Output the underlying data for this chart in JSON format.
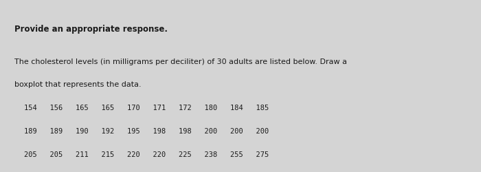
{
  "header": "Provide an appropriate response.",
  "body_line1": "The cholesterol levels (in milligrams per deciliter) of 30 adults are listed below. Draw a",
  "body_line2": "boxplot that represents the data.",
  "data_row1": "154   156   165   165   170   171   172   180   184   185",
  "data_row2": "189   189   190   192   195   198   198   200   200   200",
  "data_row3": "205   205   211   215   220   220   225   238   255   275",
  "background_color": "#d4d4d4",
  "text_color": "#1a1a1a",
  "header_fontsize": 8.5,
  "body_fontsize": 8.0,
  "data_fontsize": 7.5
}
